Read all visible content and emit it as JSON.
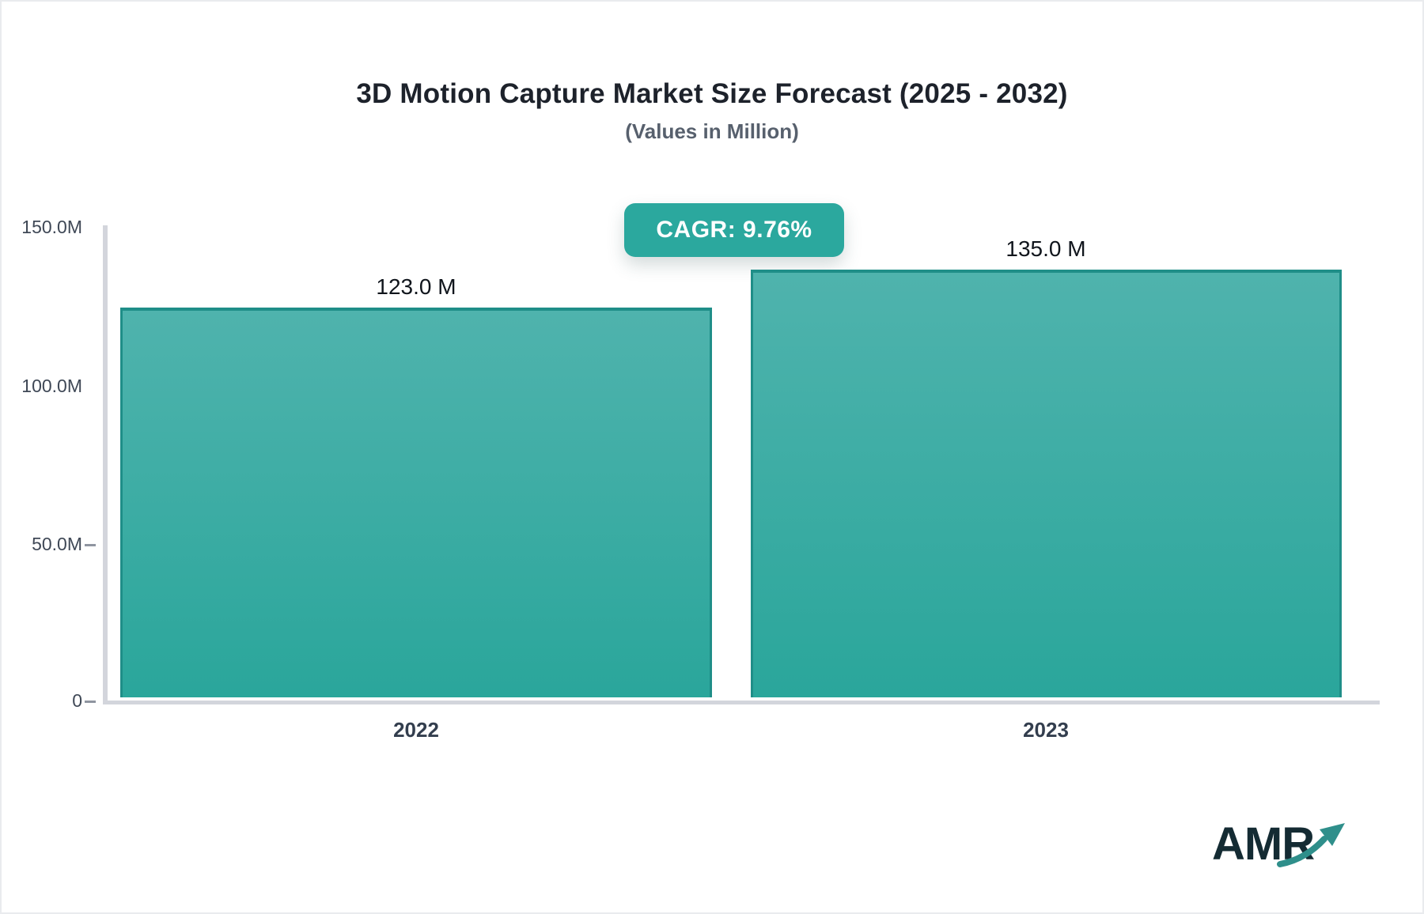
{
  "title": "3D Motion Capture Market Size Forecast (2025 - 2032)",
  "subtitle": "(Values in Million)",
  "badge": {
    "label": "CAGR: 9.76%"
  },
  "chart_data": {
    "type": "bar",
    "title": "3D Motion Capture Market Size Forecast (2025 - 2032)",
    "subtitle": "(Values in Million)",
    "categories": [
      "2022",
      "2023"
    ],
    "values": [
      123.0,
      135.0
    ],
    "value_labels": [
      "123.0 M",
      "135.0 M"
    ],
    "unit": "Million",
    "cagr": "9.76%",
    "xlabel": "",
    "ylabel": "",
    "ylim": [
      0,
      150
    ],
    "y_ticks": [
      "150.0M",
      "100.0M",
      "50.0M",
      "0"
    ],
    "y_tick_values": [
      150,
      100,
      50,
      0
    ],
    "grid": false,
    "legend": "none",
    "bar_color_top": "#4fb3ad",
    "bar_color_bottom": "#2aa69b",
    "bar_border_color": "#1f8e88",
    "badge_color": "#2ba89e",
    "axis_color": "#d3d5dc"
  },
  "logo": {
    "text": "AMR"
  }
}
